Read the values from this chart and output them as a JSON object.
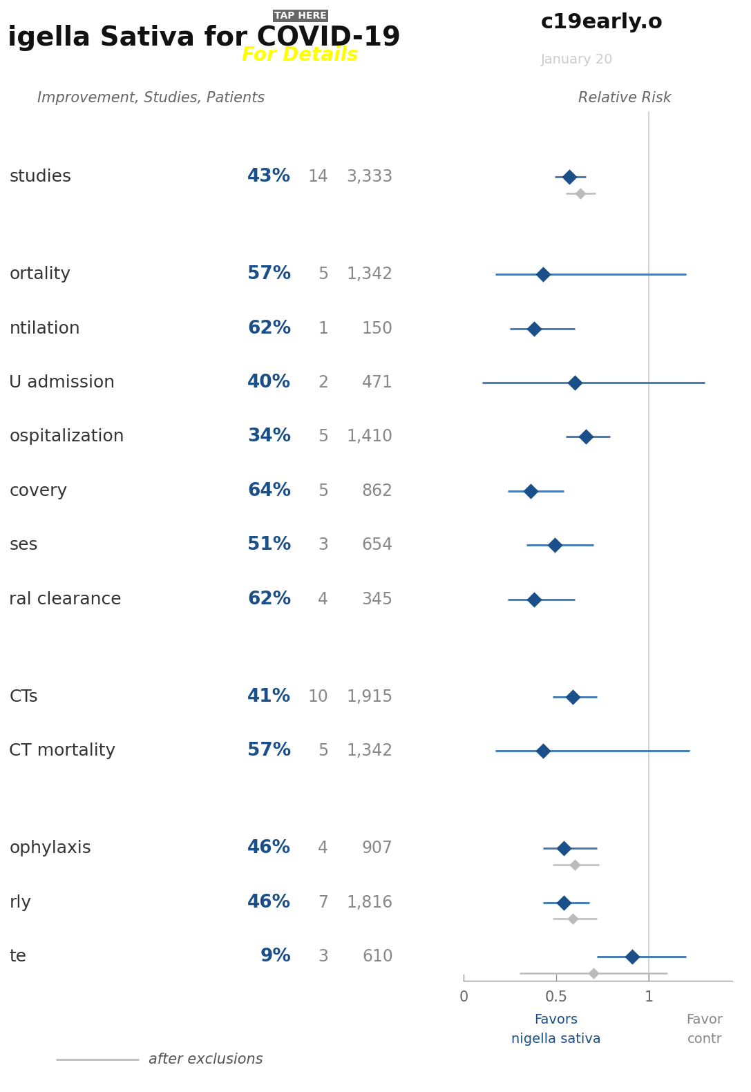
{
  "header_bg_color": "#484848",
  "col_header_left": "Improvement, Studies, Patients",
  "col_header_right": "Relative Risk",
  "rows": [
    {
      "label": "studies",
      "pct": "43%",
      "n_studies": "14",
      "n_patients": "3,333",
      "point": 0.57,
      "ci_lo": 0.49,
      "ci_hi": 0.66,
      "point2": 0.63,
      "ci_lo2": 0.55,
      "ci_hi2": 0.71,
      "has_secondary": true,
      "group": "all"
    },
    {
      "label": "ortality",
      "pct": "57%",
      "n_studies": "5",
      "n_patients": "1,342",
      "point": 0.43,
      "ci_lo": 0.17,
      "ci_hi": 1.2,
      "has_secondary": false,
      "group": "severe"
    },
    {
      "label": "ntilation",
      "pct": "62%",
      "n_studies": "1",
      "n_patients": "150",
      "point": 0.38,
      "ci_lo": 0.25,
      "ci_hi": 0.6,
      "has_secondary": false,
      "group": "severe"
    },
    {
      "label": "U admission",
      "pct": "40%",
      "n_studies": "2",
      "n_patients": "471",
      "point": 0.6,
      "ci_lo": 0.1,
      "ci_hi": 1.3,
      "has_secondary": false,
      "group": "severe"
    },
    {
      "label": "ospitalization",
      "pct": "34%",
      "n_studies": "5",
      "n_patients": "1,410",
      "point": 0.66,
      "ci_lo": 0.55,
      "ci_hi": 0.79,
      "has_secondary": false,
      "group": "severe"
    },
    {
      "label": "covery",
      "pct": "64%",
      "n_studies": "5",
      "n_patients": "862",
      "point": 0.36,
      "ci_lo": 0.24,
      "ci_hi": 0.54,
      "has_secondary": false,
      "group": "severe"
    },
    {
      "label": "ses",
      "pct": "51%",
      "n_studies": "3",
      "n_patients": "654",
      "point": 0.49,
      "ci_lo": 0.34,
      "ci_hi": 0.7,
      "has_secondary": false,
      "group": "severe"
    },
    {
      "label": "ral clearance",
      "pct": "62%",
      "n_studies": "4",
      "n_patients": "345",
      "point": 0.38,
      "ci_lo": 0.24,
      "ci_hi": 0.6,
      "has_secondary": false,
      "group": "severe"
    },
    {
      "label": "CTs",
      "pct": "41%",
      "n_studies": "10",
      "n_patients": "1,915",
      "point": 0.59,
      "ci_lo": 0.48,
      "ci_hi": 0.72,
      "has_secondary": false,
      "group": "rct"
    },
    {
      "label": "CT mortality",
      "pct": "57%",
      "n_studies": "5",
      "n_patients": "1,342",
      "point": 0.43,
      "ci_lo": 0.17,
      "ci_hi": 1.22,
      "has_secondary": false,
      "group": "rct"
    },
    {
      "label": "ophylaxis",
      "pct": "46%",
      "n_studies": "4",
      "n_patients": "907",
      "point": 0.54,
      "ci_lo": 0.43,
      "ci_hi": 0.72,
      "point2": 0.6,
      "ci_lo2": 0.48,
      "ci_hi2": 0.73,
      "has_secondary": true,
      "group": "timing"
    },
    {
      "label": "rly",
      "pct": "46%",
      "n_studies": "7",
      "n_patients": "1,816",
      "point": 0.54,
      "ci_lo": 0.43,
      "ci_hi": 0.68,
      "point2": 0.59,
      "ci_lo2": 0.48,
      "ci_hi2": 0.72,
      "has_secondary": true,
      "group": "timing"
    },
    {
      "label": "te",
      "pct": "9%",
      "n_studies": "3",
      "n_patients": "610",
      "point": 0.91,
      "ci_lo": 0.72,
      "ci_hi": 1.2,
      "point2": 0.7,
      "ci_lo2": 0.3,
      "ci_hi2": 1.1,
      "has_secondary": true,
      "group": "timing"
    }
  ],
  "blue_color": "#1a4f8a",
  "gray_color": "#aaaaaa",
  "line_color_main": "#4a7db5",
  "line_color_gray": "#bbbbbb",
  "x_ticks": [
    0,
    0.5,
    1
  ],
  "x_tick_labels": [
    "0",
    "0.5",
    "1"
  ],
  "favors_left": "Favors\nnigella sativa",
  "favors_right": "Favor\ncontr",
  "legend_main_label": "after exclusions",
  "bg_color": "#ffffff"
}
